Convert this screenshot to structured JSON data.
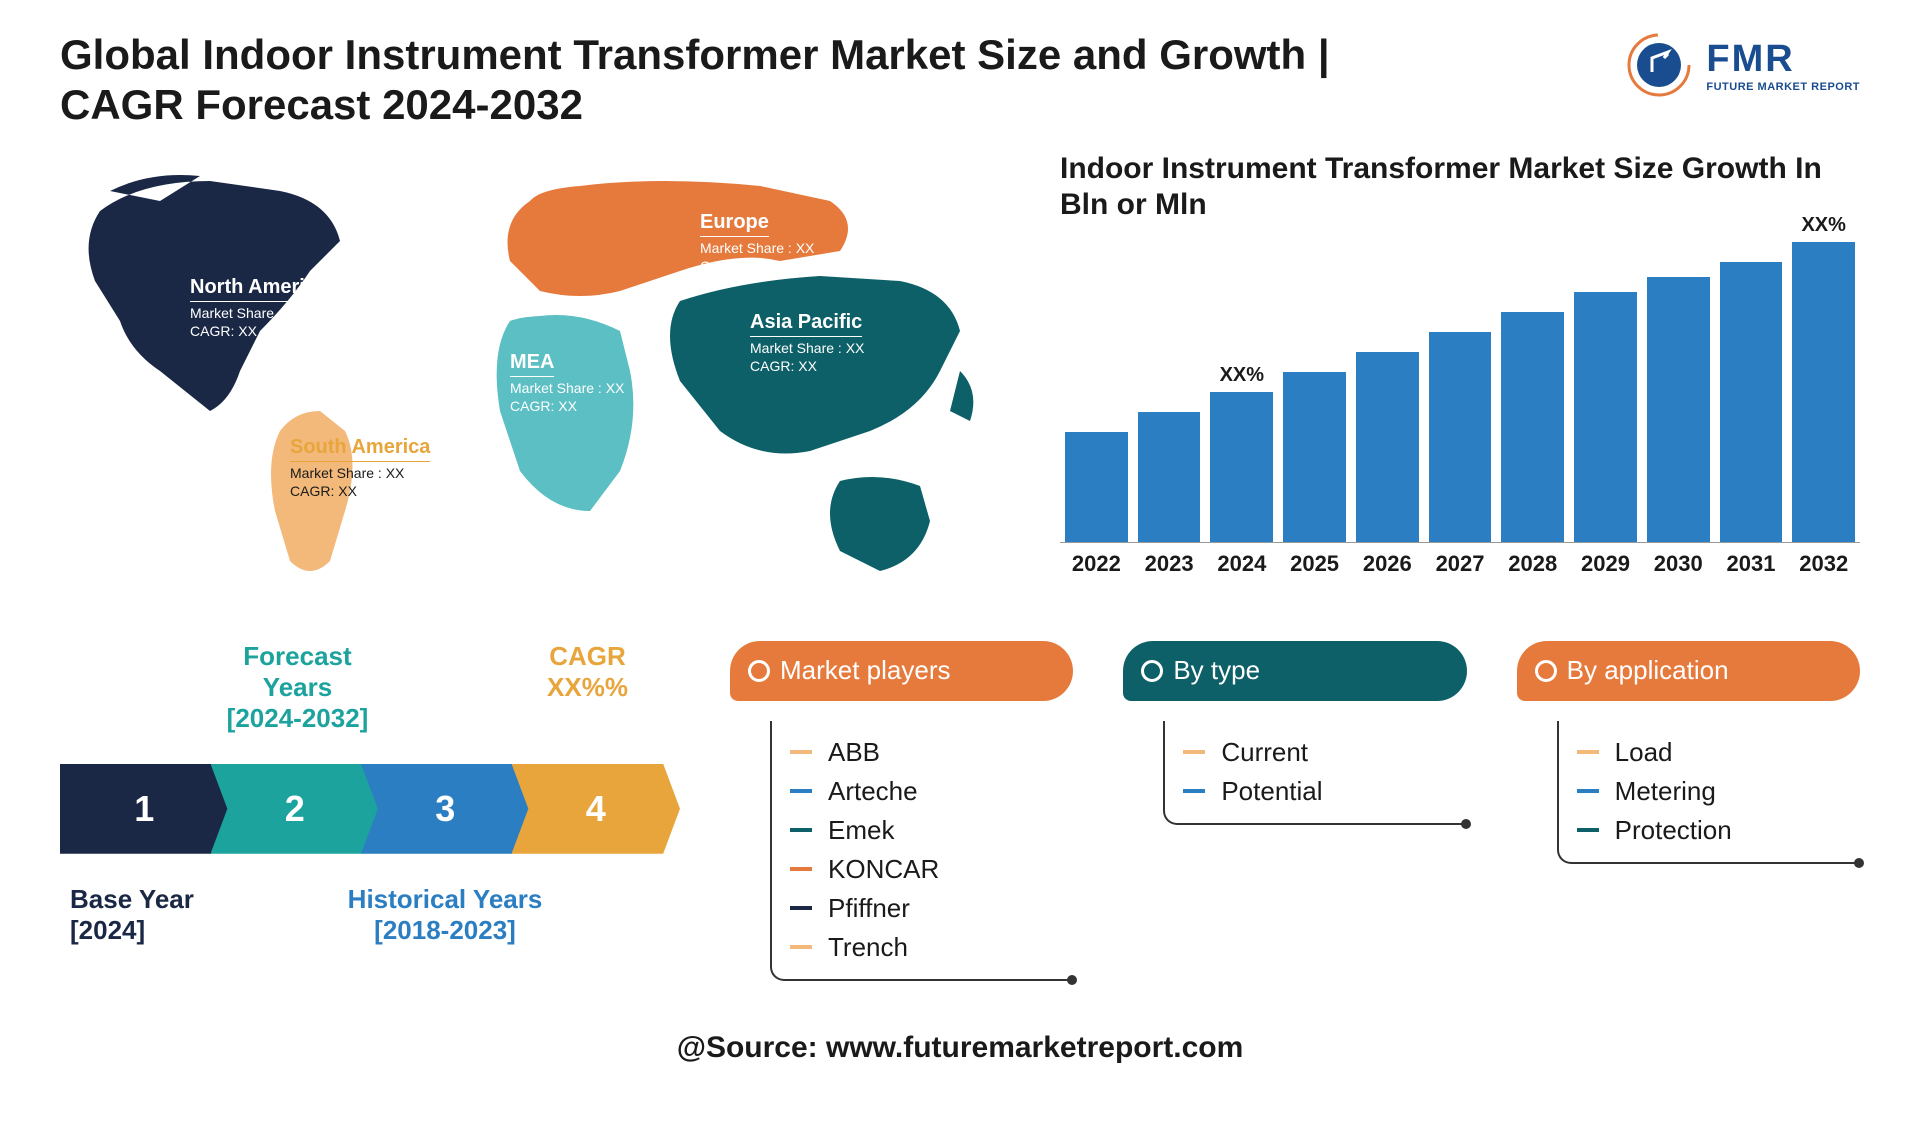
{
  "title": "Global Indoor Instrument Transformer Market Size and Growth | CAGR Forecast 2024-2032",
  "logo": {
    "fmr": "FMR",
    "sub": "FUTURE MARKET REPORT"
  },
  "regions": {
    "na": {
      "name": "North America",
      "share": "Market Share : XX",
      "cagr": "CAGR: XX",
      "color": "#1a2845"
    },
    "sa": {
      "name": "South America",
      "share": "Market Share : XX",
      "cagr": "CAGR: XX",
      "color": "#f3b97a"
    },
    "eu": {
      "name": "Europe",
      "share": "Market Share : XX",
      "cagr": "CAGR: XX",
      "color": "#e67a3c"
    },
    "mea": {
      "name": "MEA",
      "share": "Market Share : XX",
      "cagr": "CAGR: XX",
      "color": "#5bbfc4"
    },
    "ap": {
      "name": "Asia Pacific",
      "share": "Market Share : XX",
      "cagr": "CAGR: XX",
      "color": "#0d6068"
    }
  },
  "chart": {
    "title": "Indoor Instrument Transformer Market Size Growth In Bln or Mln",
    "years": [
      "2022",
      "2023",
      "2024",
      "2025",
      "2026",
      "2027",
      "2028",
      "2029",
      "2030",
      "2031",
      "2032"
    ],
    "values": [
      110,
      130,
      150,
      170,
      190,
      210,
      230,
      250,
      265,
      280,
      300
    ],
    "max": 300,
    "bar_color": "#2b7ec1",
    "labels": {
      "2": "XX%",
      "10": "XX%"
    }
  },
  "timeline": {
    "segments": [
      {
        "num": "1",
        "color": "#1a2845"
      },
      {
        "num": "2",
        "color": "#1ca39e"
      },
      {
        "num": "3",
        "color": "#2b7ec1"
      },
      {
        "num": "4",
        "color": "#e8a53c"
      }
    ],
    "forecast": {
      "title": "Forecast Years",
      "range": "[2024-2032]",
      "color": "#1ca39e"
    },
    "cagr": {
      "title": "CAGR",
      "range": "XX%%",
      "color": "#e8a53c"
    },
    "base": {
      "title": "Base Year",
      "range": "[2024]",
      "color": "#1a2845"
    },
    "hist": {
      "title": "Historical Years",
      "range": "[2018-2023]",
      "color": "#2b7ec1"
    }
  },
  "pills": {
    "players": {
      "title": "Market players",
      "color": "#e67a3c",
      "items": [
        {
          "label": "ABB",
          "bullet": "#f3b97a"
        },
        {
          "label": "Arteche",
          "bullet": "#2b7ec1"
        },
        {
          "label": "Emek",
          "bullet": "#0d6068"
        },
        {
          "label": "KONCAR",
          "bullet": "#e67a3c"
        },
        {
          "label": "Pfiffner",
          "bullet": "#1a2845"
        },
        {
          "label": "Trench",
          "bullet": "#f3b97a"
        }
      ]
    },
    "type": {
      "title": "By type",
      "color": "#0d6068",
      "items": [
        {
          "label": "Current",
          "bullet": "#f3b97a"
        },
        {
          "label": "Potential",
          "bullet": "#2b7ec1"
        }
      ]
    },
    "application": {
      "title": "By application",
      "color": "#e67a3c",
      "items": [
        {
          "label": "Load",
          "bullet": "#f3b97a"
        },
        {
          "label": "Metering",
          "bullet": "#2b7ec1"
        },
        {
          "label": "Protection",
          "bullet": "#0d6068"
        }
      ]
    }
  },
  "source": "@Source: www.futuremarketreport.com"
}
